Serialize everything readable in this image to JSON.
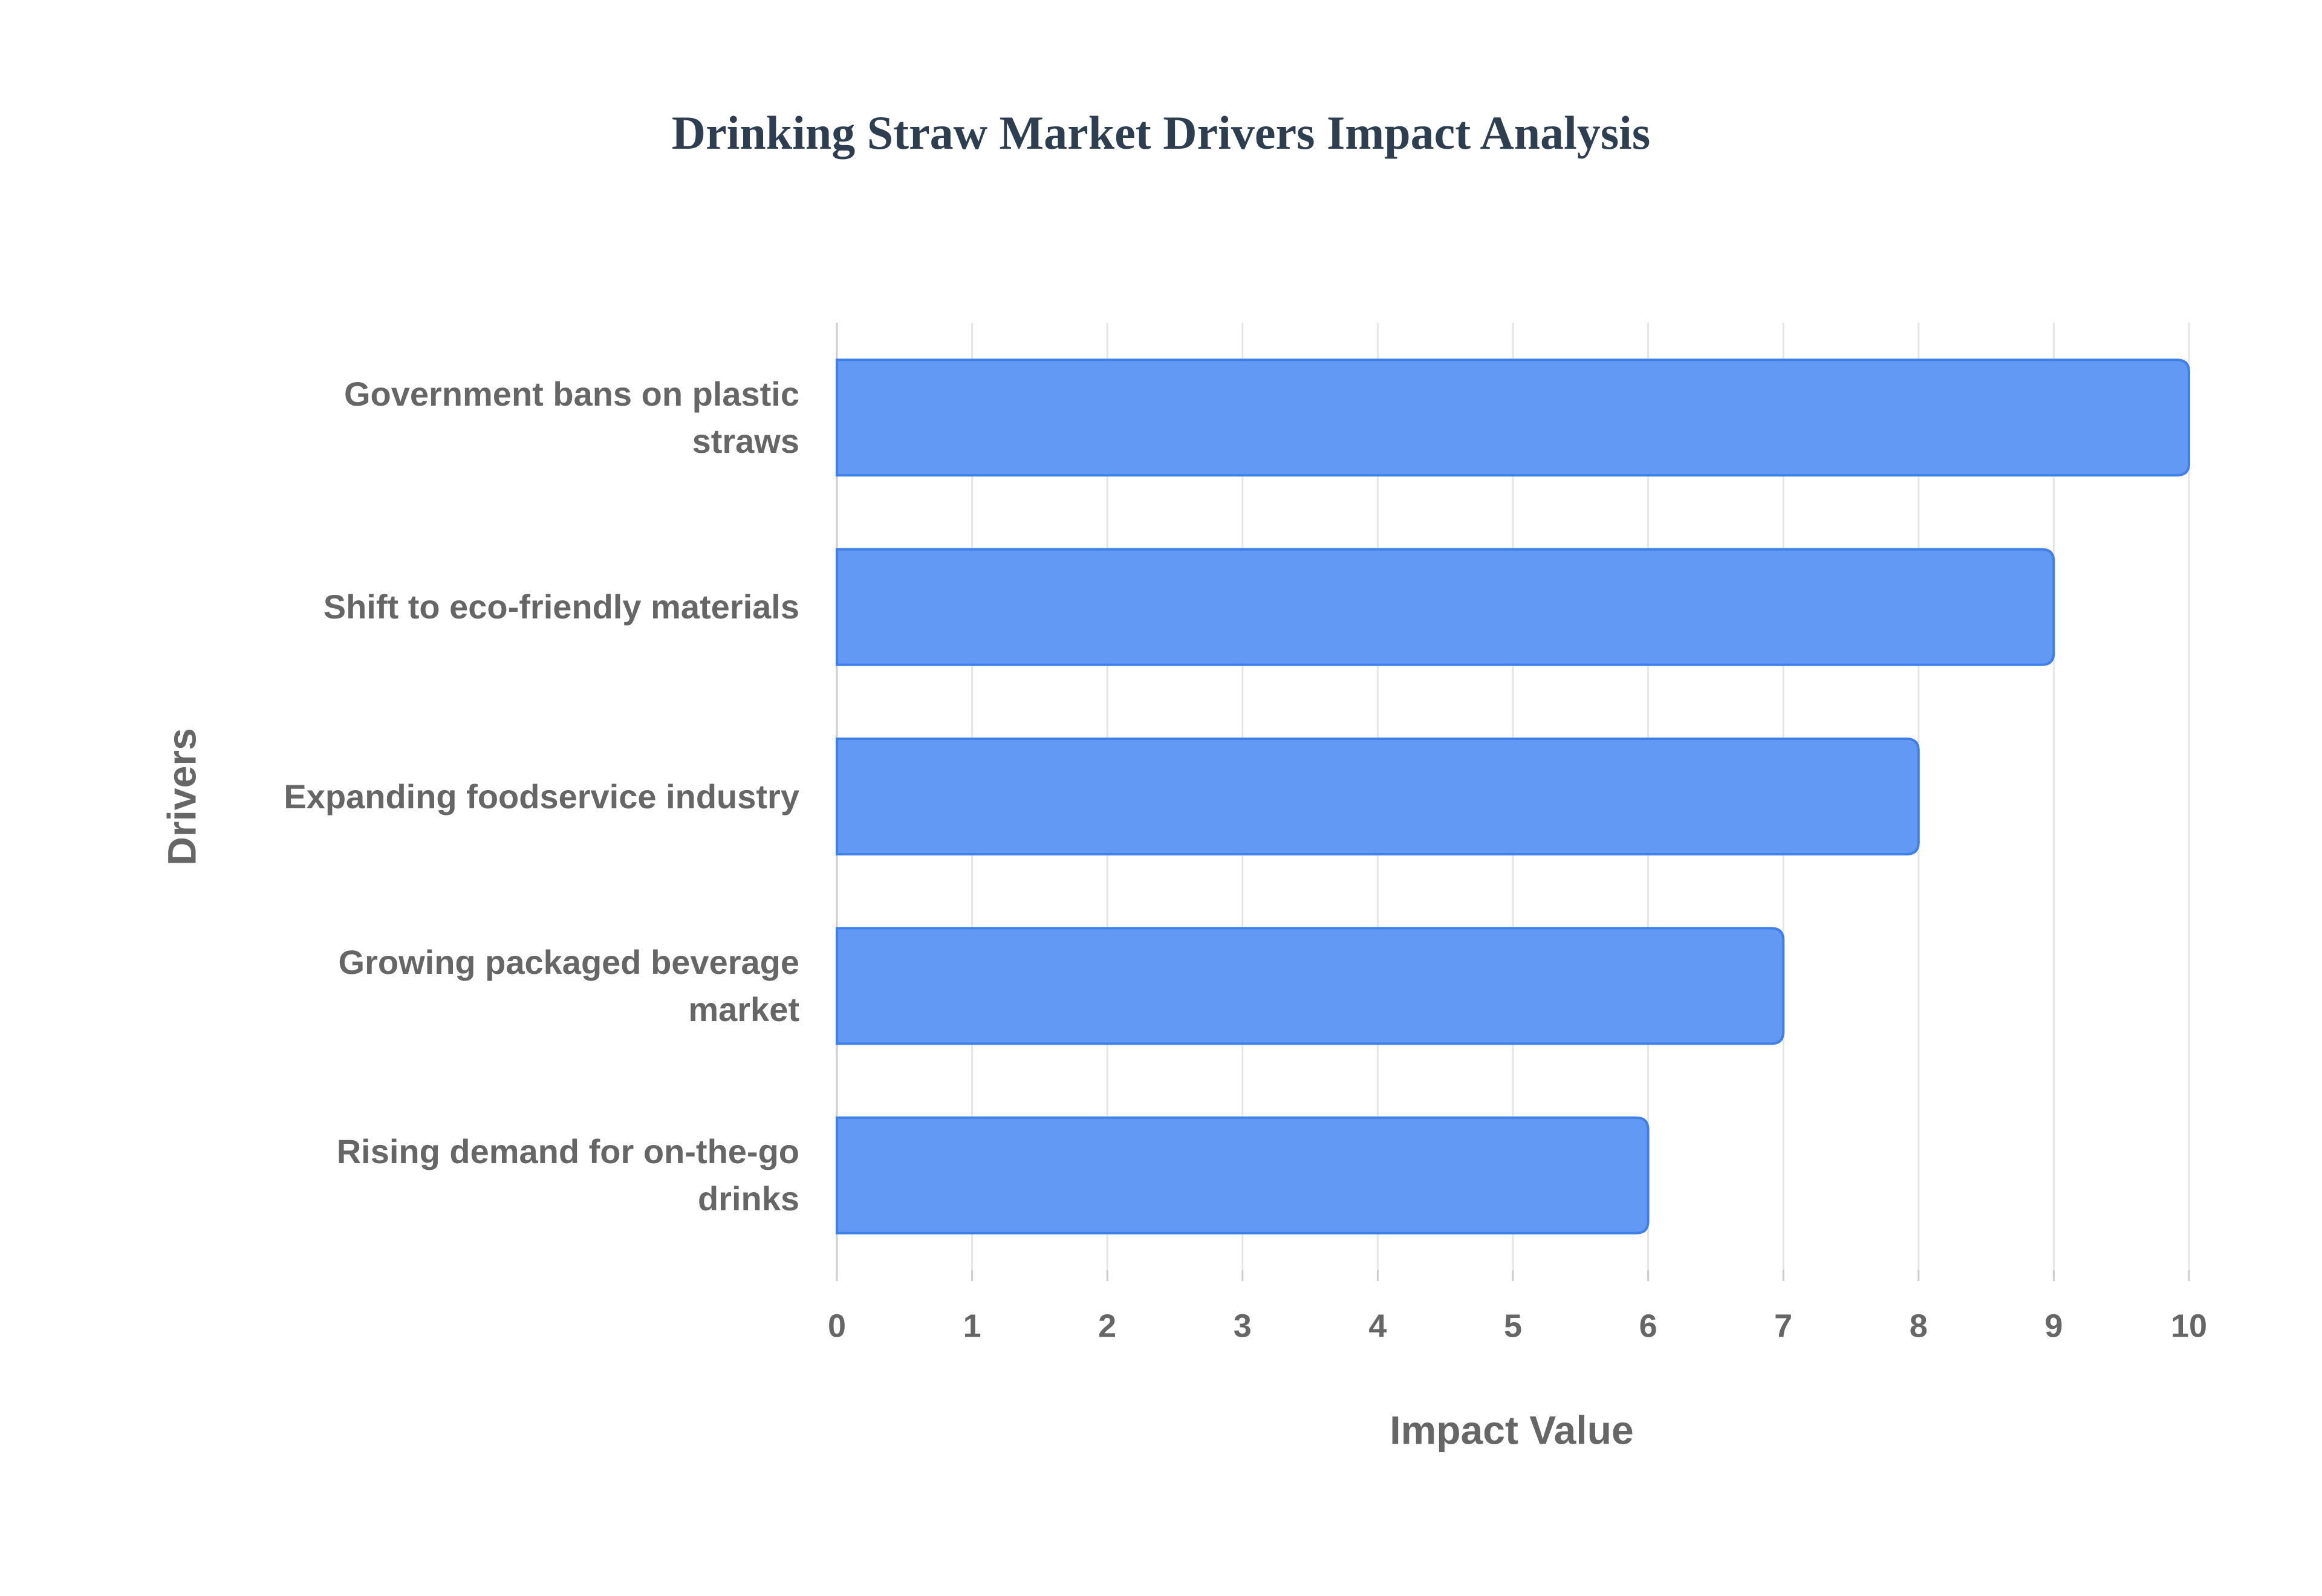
{
  "chart_data": {
    "type": "bar",
    "orientation": "horizontal",
    "title": "Drinking Straw Market Drivers Impact Analysis",
    "x_label": "Impact Value",
    "y_label": "Drivers",
    "categories": [
      "Government bans on plastic straws",
      "Shift to eco-friendly materials",
      "Expanding foodservice industry",
      "Growing packaged beverage market",
      "Rising demand for on-the-go drinks"
    ],
    "values": [
      10,
      9,
      8,
      7,
      6
    ],
    "color": "#6199f5",
    "xlim": [
      0,
      10
    ],
    "xticks": [
      0,
      1,
      2,
      3,
      4,
      5,
      6,
      7,
      8,
      9,
      10
    ],
    "grid": true
  }
}
